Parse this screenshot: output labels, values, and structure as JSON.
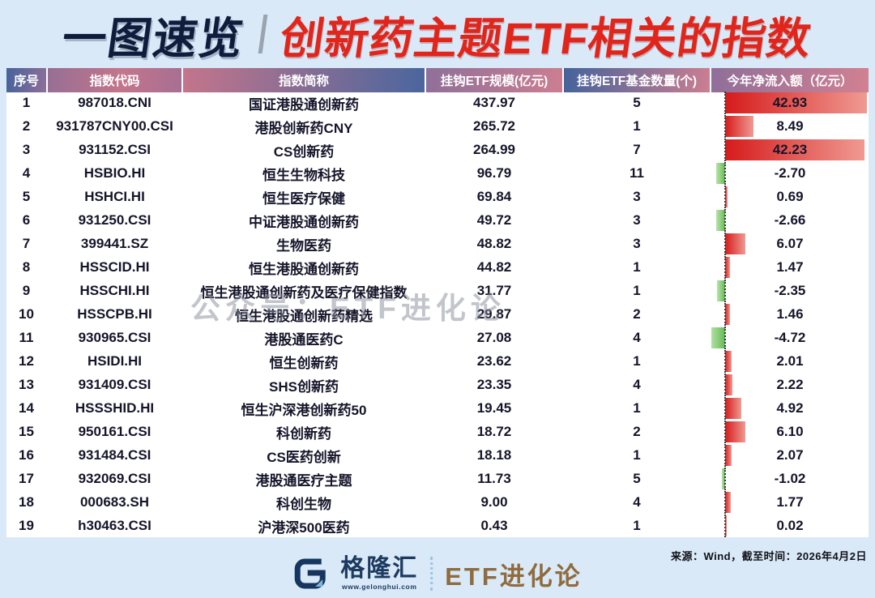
{
  "title": {
    "prefix": "一图速览",
    "main": "创新药主题ETF相关的指数",
    "prefix_color": "#0f1c3c",
    "main_color": "#e1251b"
  },
  "watermark": "公众号：ETF进化论",
  "table": {
    "headers": [
      "序号",
      "指数代码",
      "指数简称",
      "挂钩ETF规模(亿元)",
      "挂钩ETF基金数量(个)",
      "今年净流入额（亿元）"
    ],
    "rows": [
      {
        "seq": "1",
        "code": "987018.CNI",
        "name": "国证港股通创新药",
        "scale": "437.97",
        "count": "5",
        "inflow": "42.93",
        "inflow_value": 42.93
      },
      {
        "seq": "2",
        "code": "931787CNY00.CSI",
        "name": "港股创新药CNY",
        "scale": "265.72",
        "count": "1",
        "inflow": "8.49",
        "inflow_value": 8.49
      },
      {
        "seq": "3",
        "code": "931152.CSI",
        "name": "CS创新药",
        "scale": "264.99",
        "count": "7",
        "inflow": "42.23",
        "inflow_value": 42.23
      },
      {
        "seq": "4",
        "code": "HSBIO.HI",
        "name": "恒生生物科技",
        "scale": "96.79",
        "count": "11",
        "inflow": "-2.70",
        "inflow_value": -2.7
      },
      {
        "seq": "5",
        "code": "HSHCI.HI",
        "name": "恒生医疗保健",
        "scale": "69.84",
        "count": "3",
        "inflow": "0.69",
        "inflow_value": 0.69
      },
      {
        "seq": "6",
        "code": "931250.CSI",
        "name": "中证港股通创新药",
        "scale": "49.72",
        "count": "3",
        "inflow": "-2.66",
        "inflow_value": -2.66
      },
      {
        "seq": "7",
        "code": "399441.SZ",
        "name": "生物医药",
        "scale": "48.82",
        "count": "3",
        "inflow": "6.07",
        "inflow_value": 6.07
      },
      {
        "seq": "8",
        "code": "HSSCID.HI",
        "name": "恒生港股通创新药",
        "scale": "44.82",
        "count": "1",
        "inflow": "1.47",
        "inflow_value": 1.47
      },
      {
        "seq": "9",
        "code": "HSSCHI.HI",
        "name": "恒生港股通创新药及医疗保健指数",
        "scale": "31.77",
        "count": "1",
        "inflow": "-2.35",
        "inflow_value": -2.35
      },
      {
        "seq": "10",
        "code": "HSSCPB.HI",
        "name": "恒生港股通创新药精选",
        "scale": "29.87",
        "count": "2",
        "inflow": "1.46",
        "inflow_value": 1.46
      },
      {
        "seq": "11",
        "code": "930965.CSI",
        "name": "港股通医药C",
        "scale": "27.08",
        "count": "4",
        "inflow": "-4.72",
        "inflow_value": -4.72
      },
      {
        "seq": "12",
        "code": "HSIDI.HI",
        "name": "恒生创新药",
        "scale": "23.62",
        "count": "1",
        "inflow": "2.01",
        "inflow_value": 2.01
      },
      {
        "seq": "13",
        "code": "931409.CSI",
        "name": "SHS创新药",
        "scale": "23.35",
        "count": "4",
        "inflow": "2.22",
        "inflow_value": 2.22
      },
      {
        "seq": "14",
        "code": "HSSSHID.HI",
        "name": "恒生沪深港创新药50",
        "scale": "19.45",
        "count": "1",
        "inflow": "4.92",
        "inflow_value": 4.92
      },
      {
        "seq": "15",
        "code": "950161.CSI",
        "name": "科创新药",
        "scale": "18.72",
        "count": "2",
        "inflow": "6.10",
        "inflow_value": 6.1
      },
      {
        "seq": "16",
        "code": "931484.CSI",
        "name": "CS医药创新",
        "scale": "18.18",
        "count": "1",
        "inflow": "2.07",
        "inflow_value": 2.07
      },
      {
        "seq": "17",
        "code": "932069.CSI",
        "name": "港股通医疗主题",
        "scale": "11.73",
        "count": "5",
        "inflow": "-1.02",
        "inflow_value": -1.02
      },
      {
        "seq": "18",
        "code": "000683.SH",
        "name": "科创生物",
        "scale": "9.00",
        "count": "4",
        "inflow": "1.77",
        "inflow_value": 1.77
      },
      {
        "seq": "19",
        "code": "h30463.CSI",
        "name": "沪港深500医药",
        "scale": "0.43",
        "count": "1",
        "inflow": "0.02",
        "inflow_value": 0.02
      }
    ]
  },
  "footer": {
    "source": "来源：Wind，截至时间：2026年4月2日",
    "brand_name": "格隆汇",
    "brand_url": "www.gelonghui.com",
    "brand_sub": "ETF进化论"
  },
  "colors": {
    "page_background": "#d9e9f7",
    "title_prefix": "#0f1c3c",
    "title_main_red": "#e1251b",
    "bar_positive": "#d61b1b",
    "bar_negative": "#66bb55",
    "brand_navy": "#1d3a60",
    "brand_bronze": "#8f6b3e"
  },
  "chart_data": {
    "type": "bar",
    "title": "今年净流入额（亿元）",
    "orientation": "horizontal",
    "categories": [
      "国证港股通创新药",
      "港股创新药CNY",
      "CS创新药",
      "恒生生物科技",
      "恒生医疗保健",
      "中证港股通创新药",
      "生物医药",
      "恒生港股通创新药",
      "恒生港股通创新药及医疗保健指数",
      "恒生港股通创新药精选",
      "港股通医药C",
      "恒生创新药",
      "SHS创新药",
      "恒生沪深港创新药50",
      "科创新药",
      "CS医药创新",
      "港股通医疗主题",
      "科创生物",
      "沪港深500医药"
    ],
    "values": [
      42.93,
      8.49,
      42.23,
      -2.7,
      0.69,
      -2.66,
      6.07,
      1.47,
      -2.35,
      1.46,
      -4.72,
      2.01,
      2.22,
      4.92,
      6.1,
      2.07,
      -1.02,
      1.77,
      0.02
    ],
    "xlim": [
      -5,
      43
    ],
    "positive_color": "#d61b1b",
    "negative_color": "#66bb55",
    "baseline": 0,
    "grid": false,
    "legend": false
  }
}
